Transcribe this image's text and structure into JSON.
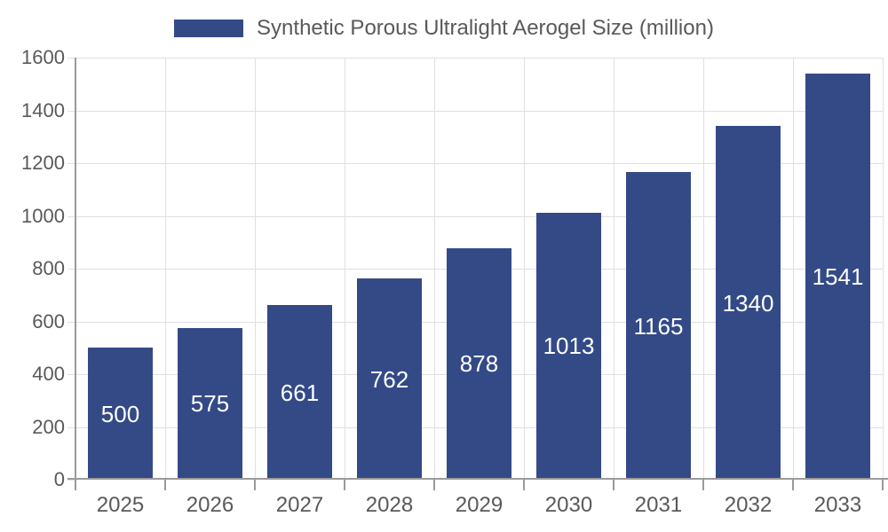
{
  "chart_data": {
    "type": "bar",
    "title": "Synthetic Porous Ultralight Aerogel Size (million)",
    "legend": {
      "label": "Synthetic Porous Ultralight Aerogel Size (million)",
      "position": "top-center"
    },
    "categories": [
      "2025",
      "2026",
      "2027",
      "2028",
      "2029",
      "2030",
      "2031",
      "2032",
      "2033"
    ],
    "values": [
      500,
      575,
      661,
      762,
      878,
      1013,
      1165,
      1340,
      1541
    ],
    "value_labels_visible": true,
    "value_label_position": "inside-center",
    "xlabel": "",
    "ylabel": "",
    "ylim": [
      0,
      1600
    ],
    "ytick_step": 200,
    "yticks_top_to_bottom": [
      1600,
      1400,
      1200,
      1000,
      800,
      600,
      400,
      200,
      0
    ],
    "grid": "both",
    "colors": {
      "bar": "#344A87",
      "value_label_text": "#FFFFFF",
      "tick_label_text": "#595959",
      "grid_line": "#E0E0E4",
      "axis_line": "#9A9A9A",
      "background": "#FFFFFF"
    }
  }
}
